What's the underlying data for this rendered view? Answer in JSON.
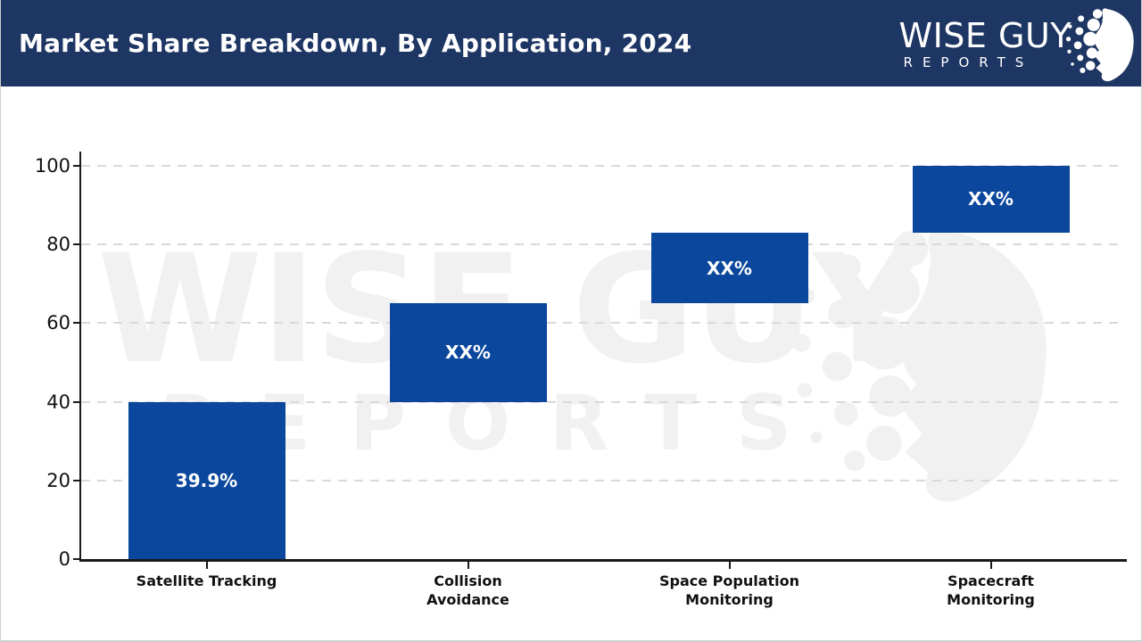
{
  "header": {
    "title": "Market Share Breakdown, By Application, 2024",
    "logo": {
      "line1": "WISE GUY",
      "line2": "REPORTS"
    }
  },
  "watermark": {
    "line1": "WISE GUY",
    "line2": "REPORTS"
  },
  "colors": {
    "header_bg": "#1e3663",
    "bar_blue": "#0b479c",
    "bar_label_white": "#ffffff",
    "grid_gray": "#d9d9d9",
    "axis_black": "#1a1a1a",
    "watermark_gray": "#f1f1f1",
    "page_border_gray": "#cfcfcf"
  },
  "chart_data": {
    "type": "bar",
    "variant": "floating-segment-waterfall",
    "title": "Market Share Breakdown, By Application, 2024",
    "xlabel": "",
    "ylabel": "",
    "categories": [
      "Satellite Tracking",
      "Collision Avoidance",
      "Space Population Monitoring",
      "Spacecraft Monitoring"
    ],
    "category_label_lines": [
      [
        "Satellite Tracking"
      ],
      [
        "Collision",
        "Avoidance"
      ],
      [
        "Space Population",
        "Monitoring"
      ],
      [
        "Spacecraft",
        "Monitoring"
      ]
    ],
    "bars": [
      {
        "category": "Satellite Tracking",
        "start": 0,
        "end": 39.9,
        "label": "39.9%"
      },
      {
        "category": "Collision Avoidance",
        "start": 40,
        "end": 65,
        "label": "XX%"
      },
      {
        "category": "Space Population Monitoring",
        "start": 65,
        "end": 83,
        "label": "XX%"
      },
      {
        "category": "Spacecraft Monitoring",
        "start": 83,
        "end": 100,
        "label": "XX%"
      }
    ],
    "y_axis": {
      "ticks": [
        0,
        20,
        40,
        60,
        80,
        100
      ],
      "range": [
        0,
        104
      ]
    },
    "grid": {
      "visible": true,
      "style": "dashed",
      "axis": "y"
    },
    "legend": {
      "visible": false
    }
  }
}
